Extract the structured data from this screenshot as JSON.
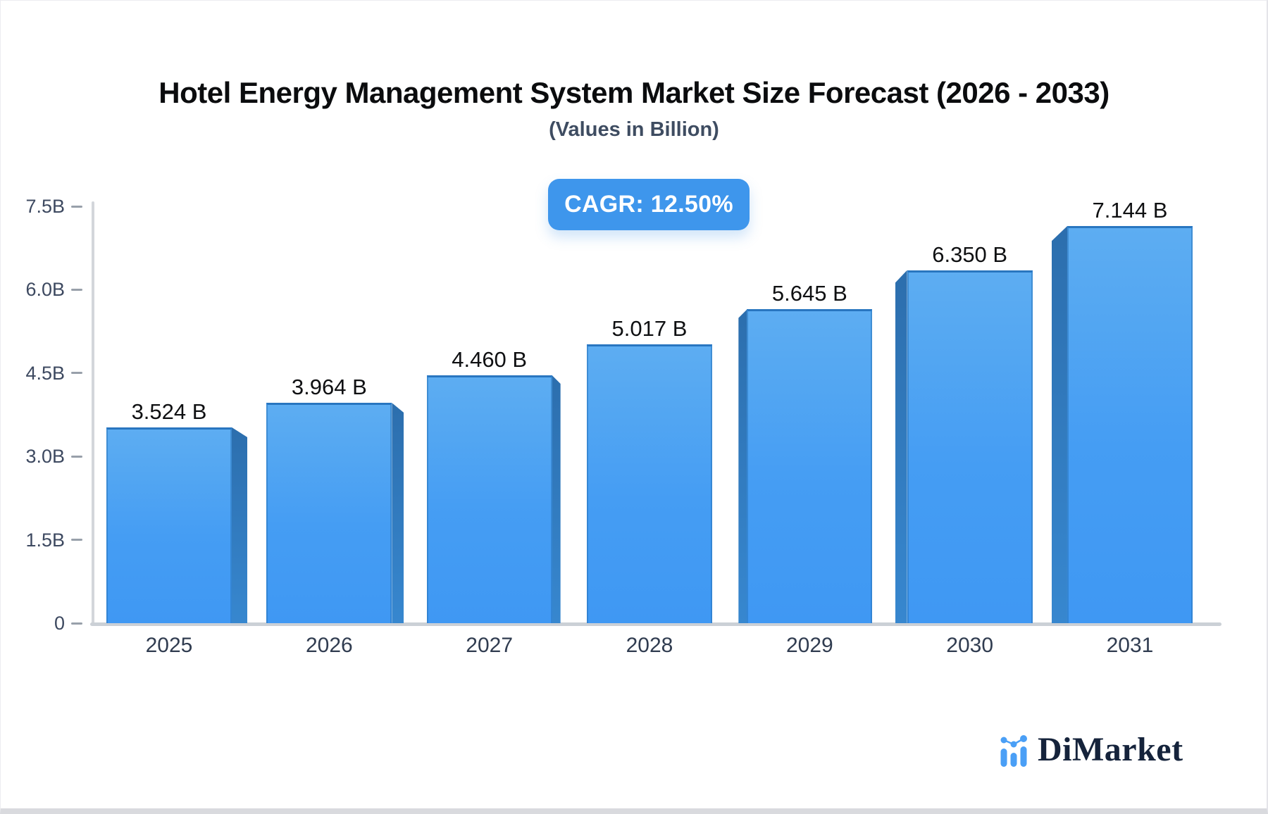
{
  "page": {
    "background": "#ffffff",
    "frame_border": "#ececf0",
    "bottom_bar_color": "#d9dade"
  },
  "header": {
    "title": "Hotel Energy Management System Market Size Forecast (2026 - 2033)",
    "subtitle": "(Values in Billion)"
  },
  "cagr_badge": {
    "label": "CAGR: 12.50%",
    "bg_color": "#3e96ec",
    "text_color": "#ffffff"
  },
  "chart_data": {
    "type": "bar",
    "title": "Hotel Energy Management System Market Size Forecast (2026 - 2033)",
    "subtitle": "(Values in Billion)",
    "annotation": "CAGR: 12.50%",
    "categories": [
      "2025",
      "2026",
      "2027",
      "2028",
      "2029",
      "2030",
      "2031"
    ],
    "values": [
      3.524,
      3.964,
      4.46,
      5.017,
      5.645,
      6.35,
      7.144
    ],
    "value_labels": [
      "3.524 B",
      "3.964 B",
      "4.460 B",
      "5.017 B",
      "5.645 B",
      "6.350 B",
      "7.144 B"
    ],
    "y_ticks": [
      "7.5B",
      "6.0B",
      "4.5B",
      "3.0B",
      "1.5B",
      "0"
    ],
    "ylim": [
      0,
      7.5
    ],
    "xlabel": "",
    "ylabel": "",
    "grid": false,
    "legend": false,
    "bar_style": "3d-perspective-toward-center",
    "bar_face_top_color": "#5dadf2",
    "bar_face_bottom_color": "#3f98f3",
    "bar_side_color": "#2e74b6"
  },
  "colors": {
    "axis_line": "#d3d6db",
    "baseline": "#cbd0d6",
    "tick": "#98a0aa",
    "y_label": "#3d4960",
    "x_label": "#303c50",
    "value_label": "#0f1012"
  },
  "logo": {
    "text": "DiMarket",
    "icon": "bar-chart-icon",
    "icon_color": "#4a9ff6",
    "text_color": "#15233b"
  }
}
